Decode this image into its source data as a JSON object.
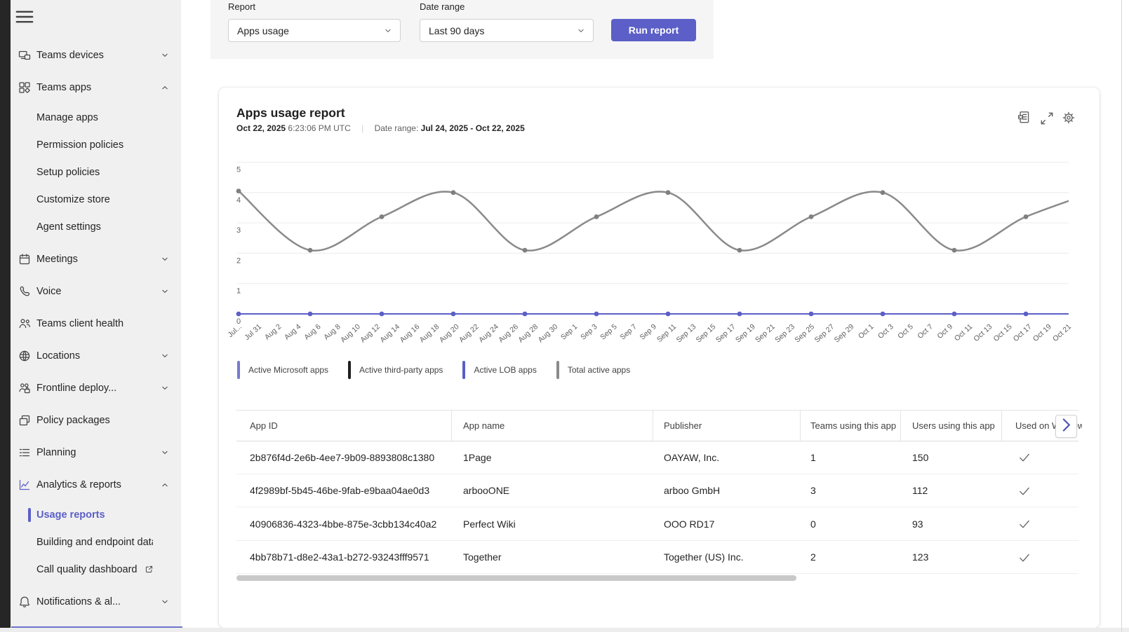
{
  "accent_color": "#5b5fc7",
  "sidebar": {
    "items": [
      {
        "label": "Teams devices",
        "icon": "devices",
        "type": "top",
        "chevron": "down"
      },
      {
        "label": "Teams apps",
        "icon": "apps",
        "type": "top",
        "chevron": "up"
      },
      {
        "label": "Manage apps",
        "type": "sub"
      },
      {
        "label": "Permission policies",
        "type": "sub"
      },
      {
        "label": "Setup policies",
        "type": "sub"
      },
      {
        "label": "Customize store",
        "type": "sub"
      },
      {
        "label": "Agent settings",
        "type": "sub",
        "group_end": true
      },
      {
        "label": "Meetings",
        "icon": "meetings",
        "type": "top",
        "chevron": "down"
      },
      {
        "label": "Voice",
        "icon": "voice",
        "type": "top",
        "chevron": "down"
      },
      {
        "label": "Teams client health",
        "icon": "client-health",
        "type": "top"
      },
      {
        "label": "Locations",
        "icon": "locations",
        "type": "top",
        "chevron": "down"
      },
      {
        "label": "Frontline deploy...",
        "icon": "frontline",
        "type": "top",
        "chevron": "down"
      },
      {
        "label": "Policy packages",
        "icon": "policy",
        "type": "top"
      },
      {
        "label": "Planning",
        "icon": "planning",
        "type": "top",
        "chevron": "down"
      },
      {
        "label": "Analytics & reports",
        "icon": "analytics",
        "type": "top",
        "chevron": "up",
        "active_section": true
      },
      {
        "label": "Usage reports",
        "type": "sub",
        "selected": true
      },
      {
        "label": "Building and endpoint data",
        "type": "sub"
      },
      {
        "label": "Call quality dashboard",
        "type": "sub",
        "external": true,
        "group_end": true
      },
      {
        "label": "Notifications & al...",
        "icon": "bell",
        "type": "top",
        "chevron": "down"
      }
    ]
  },
  "filters": {
    "report_label": "Report",
    "report_value": "Apps usage",
    "date_range_label": "Date range",
    "date_range_value": "Last 90 days",
    "run_button": "Run report"
  },
  "report": {
    "title": "Apps usage report",
    "generated_date": "Oct 22, 2025",
    "generated_time": "6:23:06 PM UTC",
    "date_range_label": "Date range:",
    "date_range_value": "Jul 24, 2025 - Oct 22, 2025"
  },
  "chart_data": {
    "type": "line",
    "title": "Apps usage report",
    "ylim": [
      0,
      5
    ],
    "y_ticks": [
      0,
      1,
      2,
      3,
      4,
      5
    ],
    "grid": true,
    "legend_position": "bottom",
    "x_tick_labels": [
      "Jul...",
      "Jul 31",
      "Aug 2",
      "Aug 4",
      "Aug 6",
      "Aug 8",
      "Aug 10",
      "Aug 12",
      "Aug 14",
      "Aug 16",
      "Aug 18",
      "Aug 20",
      "Aug 22",
      "Aug 24",
      "Aug 26",
      "Aug 28",
      "Aug 30",
      "Sep 1",
      "Sep 3",
      "Sep 5",
      "Sep 7",
      "Sep 9",
      "Sep 11",
      "Sep 13",
      "Sep 15",
      "Sep 17",
      "Sep 19",
      "Sep 21",
      "Sep 23",
      "Sep 25",
      "Sep 27",
      "Sep 29",
      "Oct 1",
      "Oct 3",
      "Oct 5",
      "Oct 7",
      "Oct 9",
      "Oct 11",
      "Oct 13",
      "Oct 15",
      "Oct 17",
      "Oct 19",
      "Oct 21"
    ],
    "series": [
      {
        "name": "Active Microsoft apps",
        "color": "#7879d1",
        "values": [
          0,
          0,
          0,
          0,
          0,
          0,
          0,
          0,
          0,
          0,
          0,
          0,
          0
        ]
      },
      {
        "name": "Active third-party apps",
        "color": "#1f1f1f",
        "values": [
          0,
          0,
          0,
          0,
          0,
          0,
          0,
          0,
          0,
          0,
          0,
          0,
          0
        ]
      },
      {
        "name": "Active LOB apps",
        "color": "#5b5fc7",
        "values": [
          0,
          0,
          0,
          0,
          0,
          0,
          0,
          0,
          0,
          0,
          0,
          0,
          0
        ]
      },
      {
        "name": "Total active apps",
        "color": "#8a8a8a",
        "values": [
          4.05,
          2.1,
          3.2,
          4,
          2.1,
          3.2,
          4,
          2.1,
          3.2,
          4,
          2.1,
          3.2,
          4.05
        ]
      }
    ]
  },
  "table": {
    "headers": [
      "App ID",
      "App name",
      "Publisher",
      "Teams using this app",
      "Users using this app",
      "Used on Windows"
    ],
    "rows": [
      {
        "app_id": "2b876f4d-2e6b-4ee7-9b09-8893808c1380",
        "app_name": "1Page",
        "publisher": "OAYAW, Inc.",
        "teams_using": "1",
        "users_using": "150",
        "used_on_windows": true
      },
      {
        "app_id": "4f2989bf-5b45-46be-9fab-e9baa04ae0d3",
        "app_name": "arbooONE",
        "publisher": "arboo GmbH",
        "teams_using": "3",
        "users_using": "112",
        "used_on_windows": true
      },
      {
        "app_id": "40906836-4323-4bbe-875e-3cbb134c40a2",
        "app_name": "Perfect Wiki",
        "publisher": "OOO RD17",
        "teams_using": "0",
        "users_using": "93",
        "used_on_windows": true
      },
      {
        "app_id": "4bb78b71-d8e2-43a1-b272-93243fff9571",
        "app_name": "Together",
        "publisher": "Together (US) Inc.",
        "teams_using": "2",
        "users_using": "123",
        "used_on_windows": true
      }
    ]
  }
}
